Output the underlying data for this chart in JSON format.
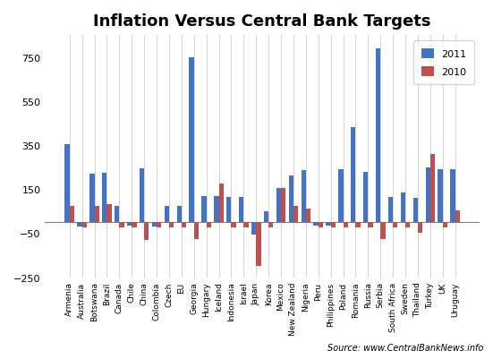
{
  "title": "Inflation Versus Central Bank Targets",
  "categories": [
    "Armenia",
    "Australia",
    "Botswana",
    "Brazil",
    "Canada",
    "Chile",
    "China",
    "Colombia",
    "Czech",
    "EU",
    "Georgia",
    "Hungary",
    "Iceland",
    "Indonesia",
    "Israel",
    "Japan",
    "Korea",
    "Mexico",
    "New Zealand",
    "Nigeria",
    "Peru",
    "Philippines",
    "Poland",
    "Romania",
    "Russia",
    "Serbia",
    "South Africa",
    "Sweden",
    "Thailand",
    "Turkey",
    "UK",
    "Uruguay"
  ],
  "values_2011": [
    355,
    -20,
    220,
    225,
    75,
    -15,
    245,
    -20,
    75,
    75,
    750,
    120,
    120,
    115,
    115,
    -55,
    50,
    155,
    210,
    235,
    -15,
    -15,
    240,
    430,
    230,
    790,
    115,
    135,
    110,
    250,
    240,
    240
  ],
  "values_2010": [
    75,
    -25,
    75,
    80,
    -25,
    -25,
    -80,
    -25,
    -25,
    -25,
    -75,
    -25,
    175,
    -25,
    -25,
    -200,
    -25,
    155,
    75,
    60,
    -25,
    -25,
    -25,
    -25,
    -25,
    -75,
    -25,
    -25,
    -50,
    310,
    -25,
    55
  ],
  "color_2011": "#4472C4",
  "color_2010": "#C0504D",
  "source_text": "Source: www.CentralBankNews.info",
  "ylim": [
    -250,
    850
  ],
  "yticks": [
    -250,
    -50,
    150,
    350,
    550,
    750
  ],
  "background_color": "#FFFFFF"
}
